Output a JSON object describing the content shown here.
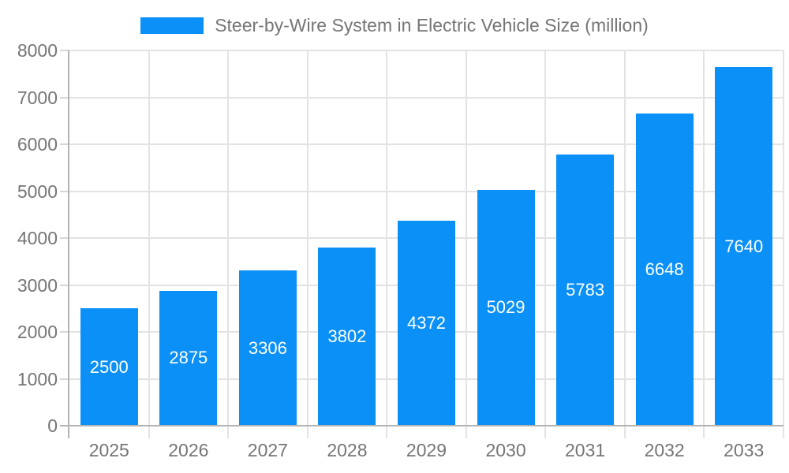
{
  "legend": {
    "label": "Steer-by-Wire System in Electric Vehicle Size (million)"
  },
  "chart_data": {
    "type": "bar",
    "title": "Steer-by-Wire System in Electric Vehicle Size (million)",
    "categories": [
      "2025",
      "2026",
      "2027",
      "2028",
      "2029",
      "2030",
      "2031",
      "2032",
      "2033"
    ],
    "values": [
      2500,
      2875,
      3306,
      3802,
      4372,
      5029,
      5783,
      6648,
      7640
    ],
    "value_labels": [
      "2500",
      "2875",
      "3306",
      "3802",
      "4372",
      "5029",
      "5783",
      "6648",
      "7640"
    ],
    "xlabel": "",
    "ylabel": "",
    "ylim": [
      0,
      8000
    ],
    "ytick_step": 1000,
    "ytick_labels": [
      "0",
      "1000",
      "2000",
      "3000",
      "4000",
      "5000",
      "6000",
      "7000",
      "8000"
    ],
    "grid": true,
    "legend_position": "top",
    "colors": {
      "bar": "#0a90f6",
      "bar_value_text": "#ffffff",
      "axis_text": "#757575",
      "legend_text": "#757575",
      "gridline": "#e3e3e3",
      "axis_line": "#b3b3b3",
      "y_tick": "#d6d6d6",
      "background": "#ffffff"
    }
  }
}
